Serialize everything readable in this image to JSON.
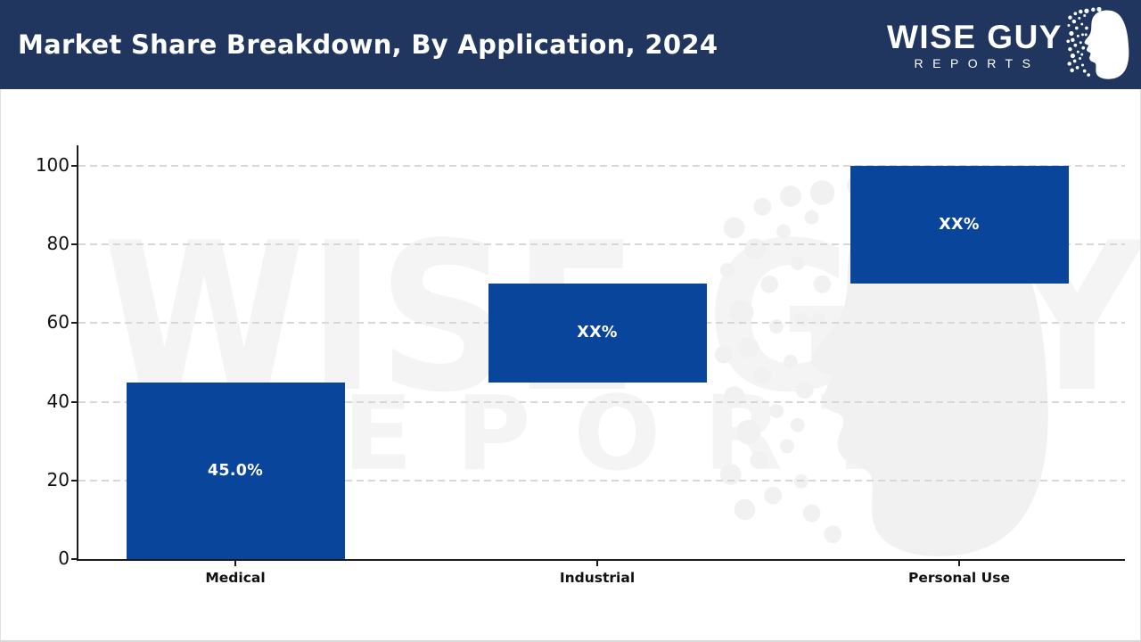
{
  "header": {
    "title": "Market Share Breakdown, By Application, 2024",
    "bg_color": "#20365f",
    "logo": {
      "wordmark": "WISE GUY",
      "subtext": "REPORTS"
    }
  },
  "watermark": {
    "wordmark": "WISE GUY",
    "subtext": "REPORTS"
  },
  "chart_data": {
    "type": "bar",
    "subtype": "floating-waterfall-bars",
    "title": "Market Share Breakdown, By Application, 2024",
    "categories": [
      "Medical",
      "Industrial",
      "Personal Use"
    ],
    "bars": [
      {
        "category": "Medical",
        "start": 0,
        "end": 45,
        "label": "45.0%"
      },
      {
        "category": "Industrial",
        "start": 45,
        "end": 70,
        "label": "XX%"
      },
      {
        "category": "Personal Use",
        "start": 70,
        "end": 100,
        "label": "XX%"
      }
    ],
    "xlabel": "",
    "ylabel": "",
    "ylim": [
      0,
      100
    ],
    "yticks": [
      0,
      20,
      40,
      60,
      80,
      100
    ],
    "grid": "horizontal-dashed",
    "legend": "none",
    "bar_color": "#0a459c",
    "bar_label_color": "#ffffff",
    "axis_color": "#1c1c1c",
    "gridline_color": "#d8d8d8"
  }
}
